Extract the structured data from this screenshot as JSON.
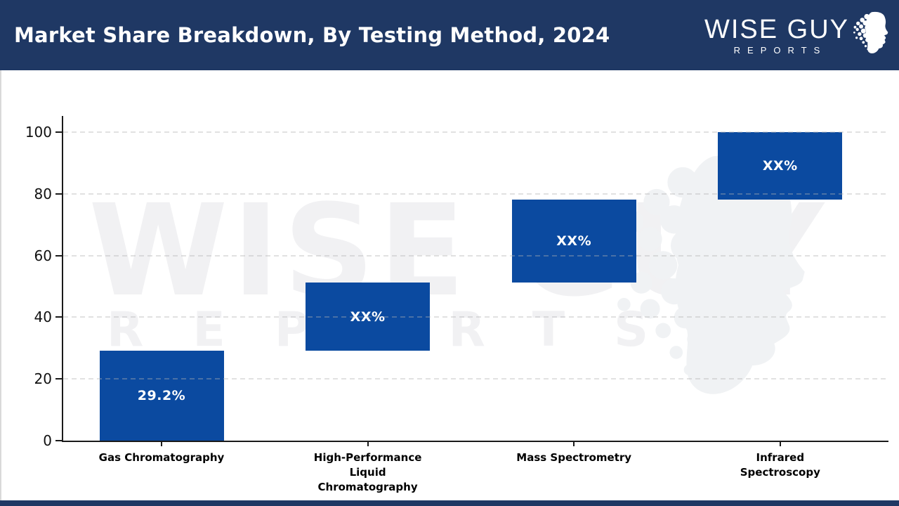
{
  "header": {
    "title": "Market Share Breakdown, By Testing Method, 2024",
    "logo": {
      "wordmark": "WISE GUY",
      "subtext": "REPORTS"
    }
  },
  "watermark": {
    "wordmark": "WISE GUY",
    "subtext": "REPORTS"
  },
  "colors": {
    "header_bg": "#1f3864",
    "footer_bg": "#1f3864",
    "bar": "#0b4aa0",
    "bar_label": "#ffffff",
    "watermark": "#f1f1f3"
  },
  "chart_data": {
    "type": "bar",
    "subtype": "waterfall-floating-segments",
    "title": "Market Share Breakdown, By Testing Method, 2024",
    "xlabel": "",
    "ylabel": "",
    "ylim": [
      0,
      105
    ],
    "yticks": [
      0,
      20,
      40,
      60,
      80,
      100
    ],
    "grid": "horizontal-dashed",
    "legend": "none",
    "bar_color": "#0b4aa0",
    "categories": [
      "Gas Chromatography",
      "High-Performance\nLiquid\nChromatography",
      "Mass Spectrometry",
      "Infrared\nSpectroscopy"
    ],
    "segments": [
      {
        "start": 0,
        "end": 29.2,
        "label": "29.2%"
      },
      {
        "start": 29.2,
        "end": 51.2,
        "label": "XX%"
      },
      {
        "start": 51.2,
        "end": 78.2,
        "label": "XX%"
      },
      {
        "start": 78.2,
        "end": 100,
        "label": "XX%"
      }
    ]
  }
}
